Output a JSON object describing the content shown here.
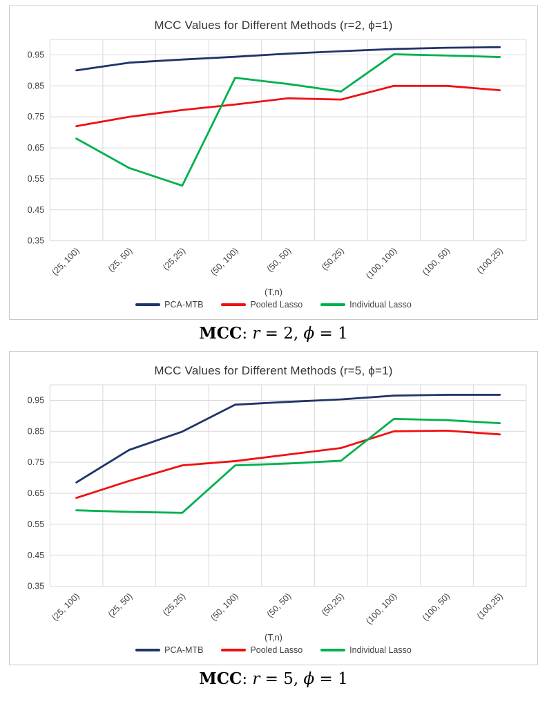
{
  "figures": [
    {
      "caption": {
        "bold": "MCC",
        "sep": ": ",
        "var1": "r",
        "mid": " = 2, ",
        "var2": "ϕ",
        "end": " = 1"
      }
    },
    {
      "caption": {
        "bold": "MCC",
        "sep": ": ",
        "var1": "r",
        "mid": " = 5, ",
        "var2": "ϕ",
        "end": " = 1"
      }
    }
  ],
  "chart_data": [
    {
      "type": "line",
      "title": "MCC Values for Different Methods (r=2, ϕ=1)",
      "xlabel": "(T,n)",
      "ylabel": "",
      "categories": [
        "(25, 100)",
        "(25, 50)",
        "(25,25)",
        "(50, 100)",
        "(50, 50)",
        "(50,25)",
        "(100, 100)",
        "(100, 50)",
        "(100,25)"
      ],
      "yticks": [
        0.35,
        0.45,
        0.55,
        0.65,
        0.75,
        0.85,
        0.95
      ],
      "ylim": [
        0.35,
        1.0
      ],
      "grid": true,
      "legend_position": "bottom",
      "gridline_color": "#d9d9d9",
      "series": [
        {
          "name": "PCA-MTB",
          "color": "#1f3468",
          "values": [
            0.9,
            0.925,
            0.935,
            0.944,
            0.954,
            0.962,
            0.969,
            0.973,
            0.975
          ]
        },
        {
          "name": "Pooled Lasso",
          "color": "#ee1111",
          "values": [
            0.72,
            0.75,
            0.772,
            0.79,
            0.81,
            0.806,
            0.85,
            0.85,
            0.836
          ]
        },
        {
          "name": "Individual Lasso",
          "color": "#00b050",
          "values": [
            0.68,
            0.585,
            0.528,
            0.876,
            0.856,
            0.832,
            0.952,
            0.948,
            0.943
          ]
        }
      ]
    },
    {
      "type": "line",
      "title": "MCC Values for Different Methods (r=5, ϕ=1)",
      "xlabel": "(T,n)",
      "ylabel": "",
      "categories": [
        "(25, 100)",
        "(25, 50)",
        "(25,25)",
        "(50, 100)",
        "(50, 50)",
        "(50,25)",
        "(100, 100)",
        "(100, 50)",
        "(100,25)"
      ],
      "yticks": [
        0.35,
        0.45,
        0.55,
        0.65,
        0.75,
        0.85,
        0.95
      ],
      "ylim": [
        0.35,
        1.0
      ],
      "grid": true,
      "legend_position": "bottom",
      "gridline_color": "#d9d9d9",
      "series": [
        {
          "name": "PCA-MTB",
          "color": "#1f3468",
          "values": [
            0.685,
            0.79,
            0.849,
            0.936,
            0.945,
            0.953,
            0.965,
            0.968,
            0.968
          ]
        },
        {
          "name": "Pooled Lasso",
          "color": "#ee1111",
          "values": [
            0.635,
            0.69,
            0.74,
            0.754,
            0.775,
            0.796,
            0.85,
            0.852,
            0.84
          ]
        },
        {
          "name": "Individual Lasso",
          "color": "#00b050",
          "values": [
            0.595,
            0.59,
            0.587,
            0.74,
            0.746,
            0.755,
            0.89,
            0.886,
            0.876
          ]
        }
      ]
    }
  ]
}
